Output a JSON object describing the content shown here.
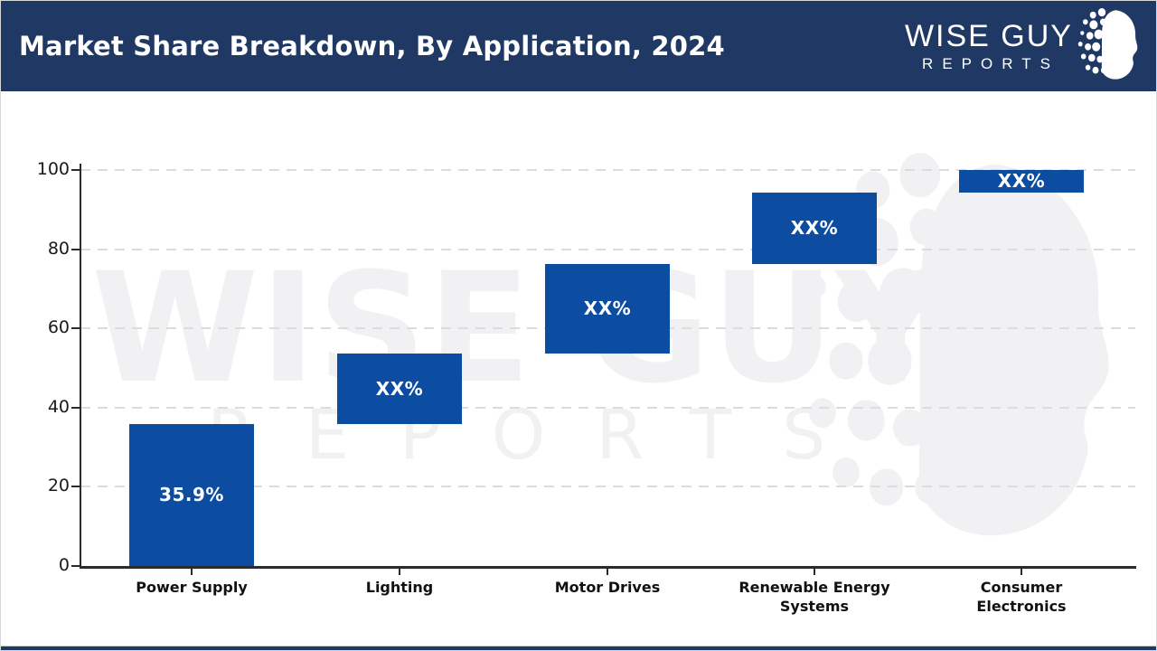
{
  "header": {
    "title": "Market Share Breakdown, By Application, 2024",
    "logo": {
      "wordmark": "WISE GUY",
      "subtext": "REPORTS"
    }
  },
  "watermark": {
    "wordmark": "WISE GUY",
    "subtext": "REPORTS"
  },
  "colors": {
    "header_bg": "#1f3864",
    "footer_bg": "#1f3864",
    "bar": "#0c4da2",
    "bar_label": "#ffffff",
    "grid": "#dcdcdc",
    "axis": "#2b2b2b",
    "tick_label": "#1a1a1a",
    "watermark": "#f1f1f4"
  },
  "chart_data": {
    "type": "bar",
    "variant": "waterfall",
    "title": "Market Share Breakdown, By Application, 2024",
    "categories": [
      "Power Supply",
      "Lighting",
      "Motor Drives",
      "Renewable Energy\nSystems",
      "Consumer\nElectronics"
    ],
    "bars": [
      {
        "category": "Power Supply",
        "start": 0,
        "end": 35.9,
        "label": "35.9%"
      },
      {
        "category": "Lighting",
        "start": 35.9,
        "end": 53.7,
        "label": "XX%"
      },
      {
        "category": "Motor Drives",
        "start": 53.7,
        "end": 76.3,
        "label": "XX%"
      },
      {
        "category": "Renewable Energy Systems",
        "start": 76.3,
        "end": 94.3,
        "label": "XX%"
      },
      {
        "category": "Consumer Electronics",
        "start": 94.3,
        "end": 100,
        "label": "XX%"
      }
    ],
    "ylim": [
      0,
      100
    ],
    "yticks": [
      0,
      20,
      40,
      60,
      80,
      100
    ],
    "xlabel": "",
    "ylabel": "",
    "grid": "horizontal-dashed",
    "legend": "none"
  }
}
